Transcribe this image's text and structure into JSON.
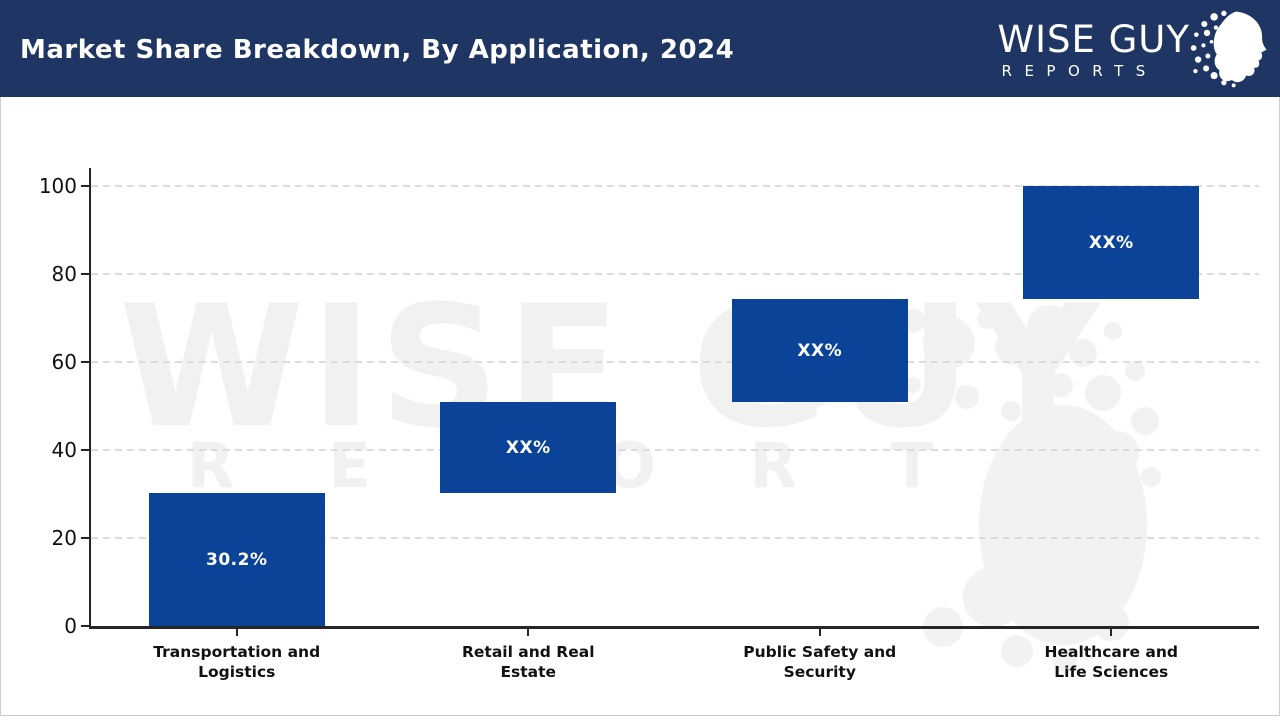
{
  "header": {
    "title": "Market Share Breakdown, By Application, 2024",
    "logo": {
      "line1": "WISE GUY",
      "line2": "REPORTS"
    }
  },
  "watermark": {
    "line1": "WISE GUY",
    "line2": "R E P O R T S"
  },
  "colors": {
    "header_bg": "#1f3564",
    "bar": "#0b4398",
    "grid": "#dcdcdc",
    "axis": "#262626",
    "watermark": "#f1f1f1",
    "bar_label_text": "#ffffff"
  },
  "chart_data": {
    "type": "bar",
    "variant": "waterfall",
    "title": "Market Share Breakdown, By Application, 2024",
    "categories": [
      "Transportation and Logistics",
      "Retail and Real Estate",
      "Public Safety and Security",
      "Healthcare and Life Sciences"
    ],
    "category_lines": [
      [
        "Transportation and",
        "Logistics"
      ],
      [
        "Retail and Real",
        "Estate"
      ],
      [
        "Public Safety and",
        "Security"
      ],
      [
        "Healthcare and",
        "Life Sciences"
      ]
    ],
    "segments": [
      {
        "start": 0,
        "end": 30.2,
        "label": "30.2%"
      },
      {
        "start": 30.2,
        "end": 50.9,
        "label": "XX%"
      },
      {
        "start": 50.9,
        "end": 74.3,
        "label": "XX%"
      },
      {
        "start": 74.3,
        "end": 100,
        "label": "XX%"
      }
    ],
    "ylim": [
      0,
      100
    ],
    "yticks": [
      0,
      20,
      40,
      60,
      80,
      100
    ],
    "grid": {
      "horizontal": true,
      "style": "dashed"
    },
    "xlabel": "",
    "ylabel": ""
  }
}
